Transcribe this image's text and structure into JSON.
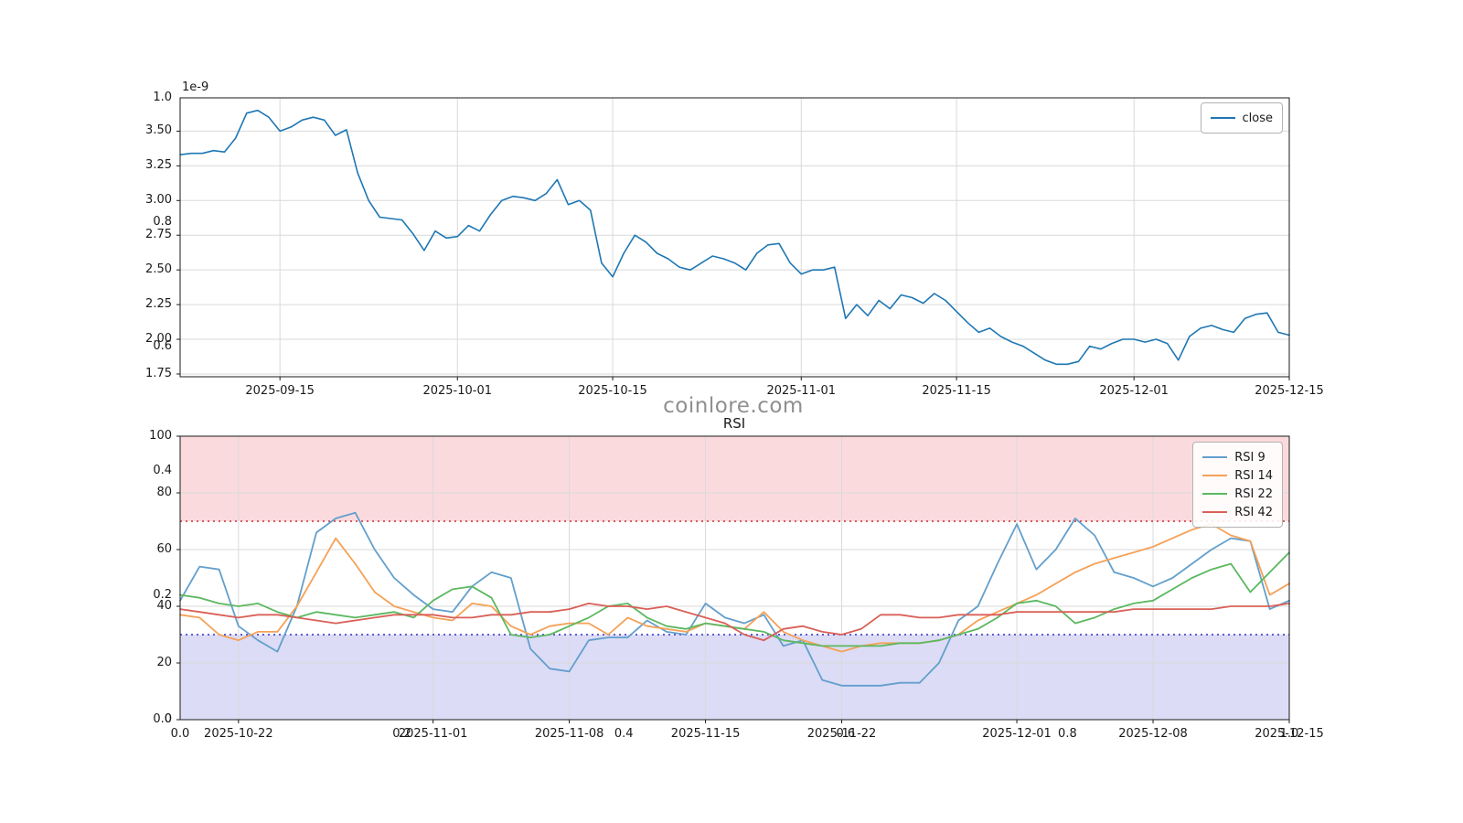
{
  "watermark": "coinlore.com",
  "price_chart": {
    "offset_label": "1e-9",
    "legend_location": "upper right"
  },
  "rsi_chart": {
    "title": "RSI",
    "legend_location": "upper right"
  },
  "stray_axis": {
    "left": [
      "1.0",
      "0.8",
      "0.6",
      "0.4",
      "0.2",
      "0.0"
    ],
    "bottom": [
      "0.0",
      "0.2",
      "0.4",
      "0.6",
      "0.8",
      "1.0"
    ]
  },
  "chart_data": [
    {
      "id": "price",
      "type": "line",
      "title": "",
      "xlabel": "",
      "ylabel": "",
      "y_scale_offset": "1e-9",
      "ylim": [
        1.73,
        3.74
      ],
      "grid": true,
      "legend_position": "upper right",
      "x_tick_labels": [
        "2025-09-15",
        "2025-10-01",
        "2025-10-15",
        "2025-11-01",
        "2025-11-15",
        "2025-12-01",
        "2025-12-15"
      ],
      "y_tick_labels": [
        "3.50",
        "3.25",
        "3.00",
        "2.75",
        "2.50",
        "2.25",
        "2.00",
        "1.75"
      ],
      "dates": [
        "2025-09-06",
        "2025-09-07",
        "2025-09-08",
        "2025-09-09",
        "2025-09-10",
        "2025-09-11",
        "2025-09-12",
        "2025-09-13",
        "2025-09-14",
        "2025-09-15",
        "2025-09-16",
        "2025-09-17",
        "2025-09-18",
        "2025-09-19",
        "2025-09-20",
        "2025-09-21",
        "2025-09-22",
        "2025-09-23",
        "2025-09-24",
        "2025-09-25",
        "2025-09-26",
        "2025-09-27",
        "2025-09-28",
        "2025-09-29",
        "2025-09-30",
        "2025-10-01",
        "2025-10-02",
        "2025-10-03",
        "2025-10-04",
        "2025-10-05",
        "2025-10-06",
        "2025-10-07",
        "2025-10-08",
        "2025-10-09",
        "2025-10-10",
        "2025-10-11",
        "2025-10-12",
        "2025-10-13",
        "2025-10-14",
        "2025-10-15",
        "2025-10-16",
        "2025-10-17",
        "2025-10-18",
        "2025-10-19",
        "2025-10-20",
        "2025-10-21",
        "2025-10-22",
        "2025-10-23",
        "2025-10-24",
        "2025-10-25",
        "2025-10-26",
        "2025-10-27",
        "2025-10-28",
        "2025-10-29",
        "2025-10-30",
        "2025-10-31",
        "2025-11-01",
        "2025-11-02",
        "2025-11-03",
        "2025-11-04",
        "2025-11-05",
        "2025-11-06",
        "2025-11-07",
        "2025-11-08",
        "2025-11-09",
        "2025-11-10",
        "2025-11-11",
        "2025-11-12",
        "2025-11-13",
        "2025-11-14",
        "2025-11-15",
        "2025-11-16",
        "2025-11-17",
        "2025-11-18",
        "2025-11-19",
        "2025-11-20",
        "2025-11-21",
        "2025-11-22",
        "2025-11-23",
        "2025-11-24",
        "2025-11-25",
        "2025-11-26",
        "2025-11-27",
        "2025-11-28",
        "2025-11-29",
        "2025-11-30",
        "2025-12-01",
        "2025-12-02",
        "2025-12-03",
        "2025-12-04",
        "2025-12-05",
        "2025-12-06",
        "2025-12-07",
        "2025-12-08",
        "2025-12-09",
        "2025-12-10",
        "2025-12-11",
        "2025-12-12",
        "2025-12-13",
        "2025-12-14",
        "2025-12-15"
      ],
      "series": [
        {
          "name": "close",
          "color": "#1f77b4",
          "values": [
            3.33,
            3.34,
            3.34,
            3.36,
            3.35,
            3.45,
            3.63,
            3.65,
            3.6,
            3.5,
            3.53,
            3.58,
            3.6,
            3.58,
            3.47,
            3.51,
            3.2,
            3.0,
            2.88,
            2.87,
            2.86,
            2.76,
            2.64,
            2.78,
            2.73,
            2.74,
            2.82,
            2.78,
            2.9,
            3.0,
            3.03,
            3.02,
            3.0,
            3.05,
            3.15,
            2.97,
            3.0,
            2.93,
            2.55,
            2.45,
            2.62,
            2.75,
            2.7,
            2.62,
            2.58,
            2.52,
            2.5,
            2.55,
            2.6,
            2.58,
            2.55,
            2.5,
            2.62,
            2.68,
            2.69,
            2.55,
            2.47,
            2.5,
            2.5,
            2.52,
            2.15,
            2.25,
            2.17,
            2.28,
            2.22,
            2.32,
            2.3,
            2.26,
            2.33,
            2.28,
            2.2,
            2.12,
            2.05,
            2.08,
            2.02,
            1.98,
            1.95,
            1.9,
            1.85,
            1.82,
            1.82,
            1.84,
            1.95,
            1.93,
            1.97,
            2.0,
            2.0,
            1.98,
            2.0,
            1.97,
            1.85,
            2.02,
            2.08,
            2.1,
            2.07,
            2.05,
            2.15,
            2.18,
            2.19,
            2.05,
            2.03
          ]
        }
      ]
    },
    {
      "id": "rsi",
      "type": "line",
      "title": "RSI",
      "xlabel": "",
      "ylabel": "",
      "ylim": [
        0,
        100
      ],
      "grid": true,
      "legend_position": "upper right",
      "x_tick_labels": [
        "2025-10-22",
        "2025-11-01",
        "2025-11-08",
        "2025-11-15",
        "2025-11-22",
        "2025-12-01",
        "2025-12-08",
        "2025-12-15"
      ],
      "y_tick_labels": [
        "100",
        "80",
        "60",
        "40",
        "20",
        "0"
      ],
      "bands": [
        {
          "name": "overbought-band",
          "from": 70,
          "to": 100,
          "color": "#fbdade"
        },
        {
          "name": "oversold-band",
          "from": 0,
          "to": 30,
          "color": "#dcdcf6"
        }
      ],
      "threshold_lines": [
        {
          "name": "overbought-line",
          "value": 70,
          "color": "#c62f2f"
        },
        {
          "name": "oversold-line",
          "value": 30,
          "color": "#2b2bbf"
        }
      ],
      "dates": [
        "2025-10-19",
        "2025-10-20",
        "2025-10-21",
        "2025-10-22",
        "2025-10-23",
        "2025-10-24",
        "2025-10-25",
        "2025-10-26",
        "2025-10-27",
        "2025-10-28",
        "2025-10-29",
        "2025-10-30",
        "2025-10-31",
        "2025-11-01",
        "2025-11-02",
        "2025-11-03",
        "2025-11-04",
        "2025-11-05",
        "2025-11-06",
        "2025-11-07",
        "2025-11-08",
        "2025-11-09",
        "2025-11-10",
        "2025-11-11",
        "2025-11-12",
        "2025-11-13",
        "2025-11-14",
        "2025-11-15",
        "2025-11-16",
        "2025-11-17",
        "2025-11-18",
        "2025-11-19",
        "2025-11-20",
        "2025-11-21",
        "2025-11-22",
        "2025-11-23",
        "2025-11-24",
        "2025-11-25",
        "2025-11-26",
        "2025-11-27",
        "2025-11-28",
        "2025-11-29",
        "2025-11-30",
        "2025-12-01",
        "2025-12-02",
        "2025-12-03",
        "2025-12-04",
        "2025-12-05",
        "2025-12-06",
        "2025-12-07",
        "2025-12-08",
        "2025-12-09",
        "2025-12-10",
        "2025-12-11",
        "2025-12-12",
        "2025-12-13",
        "2025-12-14",
        "2025-12-15"
      ],
      "series": [
        {
          "name": "RSI 9",
          "color": "#639fcc",
          "values": [
            42,
            54,
            53,
            33,
            28,
            24,
            40,
            66,
            71,
            73,
            60,
            50,
            44,
            39,
            38,
            47,
            52,
            50,
            25,
            18,
            17,
            28,
            29,
            29,
            35,
            31,
            30,
            41,
            36,
            34,
            37,
            26,
            28,
            14,
            12,
            12,
            12,
            13,
            13,
            20,
            35,
            40,
            55,
            69,
            53,
            60,
            71,
            65,
            52,
            50,
            47,
            50,
            55,
            60,
            64,
            63,
            39,
            42
          ]
        },
        {
          "name": "RSI 14",
          "color": "#f5a157",
          "values": [
            37,
            36,
            30,
            28,
            31,
            31,
            40,
            52,
            64,
            55,
            45,
            40,
            38,
            36,
            35,
            41,
            40,
            33,
            30,
            33,
            34,
            34,
            30,
            36,
            33,
            32,
            31,
            34,
            33,
            32,
            38,
            31,
            28,
            26,
            24,
            26,
            27,
            27,
            27,
            28,
            30,
            35,
            38,
            41,
            44,
            48,
            52,
            55,
            57,
            59,
            61,
            64,
            67,
            69,
            65,
            63,
            44,
            48
          ]
        },
        {
          "name": "RSI 22",
          "color": "#5cb860",
          "values": [
            44,
            43,
            41,
            40,
            41,
            38,
            36,
            38,
            37,
            36,
            37,
            38,
            36,
            42,
            46,
            47,
            43,
            30,
            29,
            30,
            33,
            36,
            40,
            41,
            36,
            33,
            32,
            34,
            33,
            32,
            31,
            28,
            27,
            26,
            26,
            26,
            26,
            27,
            27,
            28,
            30,
            32,
            36,
            41,
            42,
            40,
            34,
            36,
            39,
            41,
            42,
            46,
            50,
            53,
            55,
            45,
            52,
            59
          ]
        },
        {
          "name": "RSI 42",
          "color": "#d96057",
          "values": [
            39,
            38,
            37,
            36,
            37,
            37,
            36,
            35,
            34,
            35,
            36,
            37,
            37,
            37,
            36,
            36,
            37,
            37,
            38,
            38,
            39,
            41,
            40,
            40,
            39,
            40,
            38,
            36,
            34,
            30,
            28,
            32,
            33,
            31,
            30,
            32,
            37,
            37,
            36,
            36,
            37,
            37,
            37,
            38,
            38,
            38,
            38,
            38,
            38,
            39,
            39,
            39,
            39,
            39,
            40,
            40,
            40,
            41
          ]
        }
      ]
    }
  ]
}
